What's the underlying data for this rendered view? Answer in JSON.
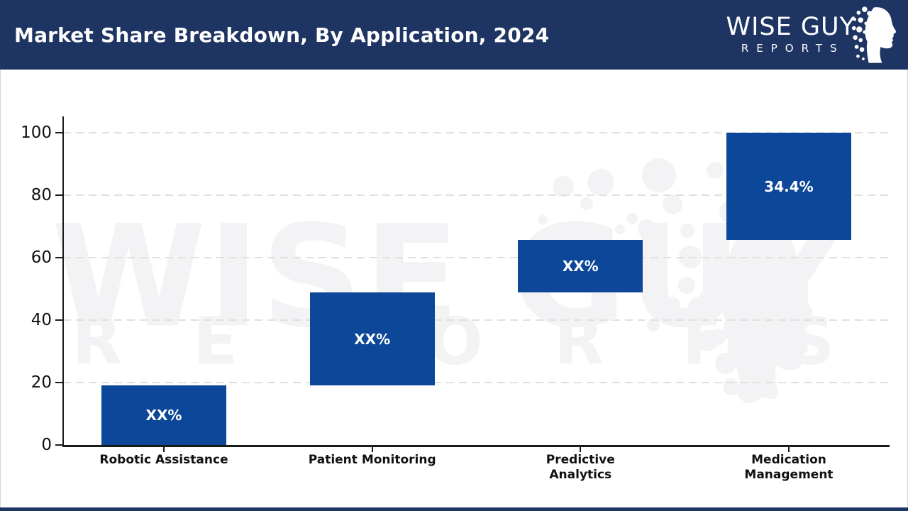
{
  "header": {
    "title": "Market Share Breakdown, By Application, 2024",
    "logo": {
      "name": "WISE GUY",
      "subtitle": "REPORTS"
    }
  },
  "watermark": {
    "line1": "WISE GUY",
    "line2": "REPORTS"
  },
  "colors": {
    "header-bg": "#1e3462",
    "bar-fill": "#0d4799",
    "axis": "#1a1a1a",
    "grid": "#e0e0e0",
    "bar-label": "#ffffff",
    "watermark": "#f3f3f5",
    "tick-label": "#111111"
  },
  "chart_data": {
    "type": "bar",
    "variant": "floating-segment-waterfall",
    "title": "Market Share Breakdown, By Application, 2024",
    "categories": [
      "Robotic Assistance",
      "Patient Monitoring",
      "Predictive\nAnalytics",
      "Medication\nManagement"
    ],
    "segments": [
      {
        "category": "Robotic Assistance",
        "start": 0,
        "end": 19,
        "label": "XX%"
      },
      {
        "category": "Patient Monitoring",
        "start": 19,
        "end": 48.8,
        "label": "XX%"
      },
      {
        "category": "Predictive Analytics",
        "start": 48.8,
        "end": 65.6,
        "label": "XX%"
      },
      {
        "category": "Medication Management",
        "start": 65.6,
        "end": 100,
        "label": "34.4%"
      }
    ],
    "xlabel": "",
    "ylabel": "",
    "yticks": [
      0,
      20,
      40,
      60,
      80,
      100
    ],
    "ylim": [
      0,
      105
    ],
    "grid": "horizontal dashed",
    "legend": "none",
    "bar_color": "#0d4799",
    "value_label_color": "#ffffff"
  }
}
